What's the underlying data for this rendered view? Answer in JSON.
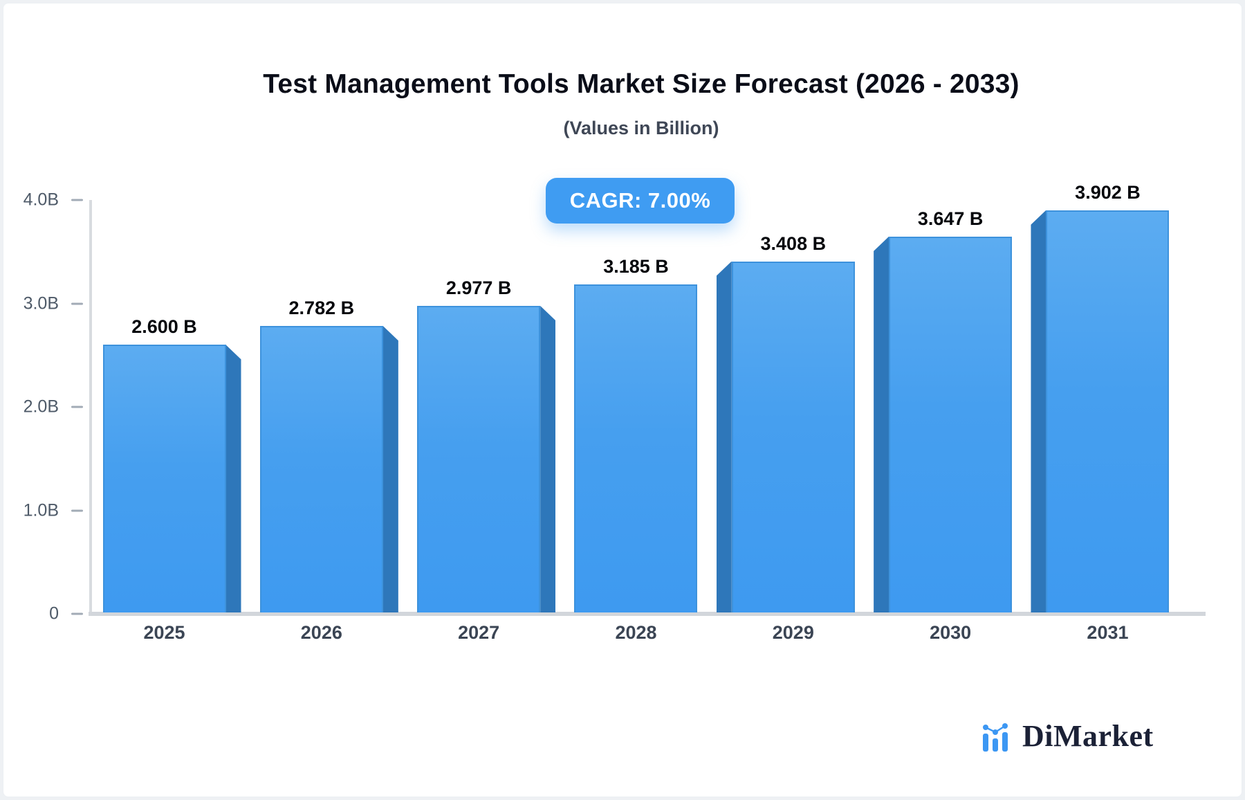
{
  "title": "Test Management Tools Market Size Forecast (2026 - 2033)",
  "subtitle": "(Values in Billion)",
  "badge": {
    "label": "CAGR: 7.00%"
  },
  "brand": {
    "name": "DiMarket",
    "icon": "mini-bar-chart-logo-icon"
  },
  "colors": {
    "bar_face_top": "#5cacf1",
    "bar_face_bottom": "#3e9af0",
    "bar_side": "#2e77ba",
    "bar_border": "#3d92dc",
    "badge_bg": "#3f9cf2",
    "axis_line": "#d5d8dd",
    "logo_blue": "#3c97f3",
    "logo_text": "#1b2136"
  },
  "chart_data": {
    "type": "bar",
    "title": "Test Management Tools Market Size Forecast (2026 - 2033)",
    "subtitle": "(Values in Billion)",
    "categories": [
      "2025",
      "2026",
      "2027",
      "2028",
      "2029",
      "2030",
      "2031"
    ],
    "values": [
      2.6,
      2.782,
      2.977,
      3.185,
      3.408,
      3.647,
      3.902
    ],
    "value_labels": [
      "2.600 B",
      "2.782 B",
      "2.977 B",
      "3.185 B",
      "3.408 B",
      "3.647 B",
      "3.902 B"
    ],
    "xlabel": "",
    "ylabel": "",
    "ylim": [
      0,
      4.0
    ],
    "ytick_values": [
      4.0,
      3.0,
      2.0,
      1.0,
      0
    ],
    "ytick_labels": [
      "4.0B",
      "3.0B",
      "2.0B",
      "1.0B",
      "0"
    ],
    "annotation": "CAGR: 7.00%",
    "legend": "none",
    "grid": "none",
    "bar_style": "3d-beveled"
  }
}
